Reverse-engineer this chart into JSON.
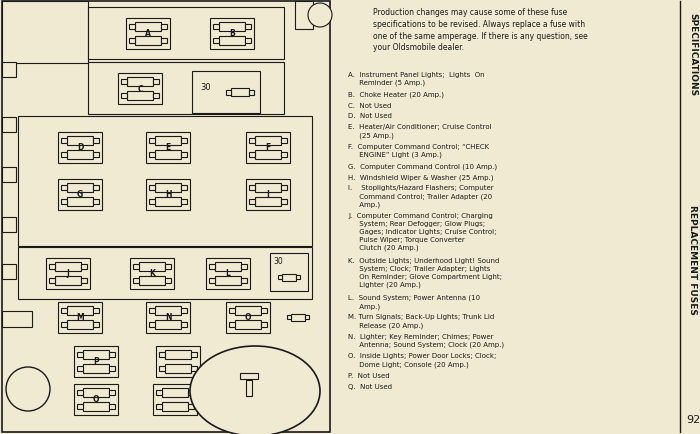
{
  "bg_color": "#f0ead2",
  "line_color": "#1a1a1a",
  "title_right_top": "SPECIFICATIONS",
  "title_right_mid": "REPLACEMENT FUSES",
  "page_num": "92",
  "intro_text": "Production changes may cause some of these fuse\nspecifications to be revised. Always replace a fuse with\none of the same amperage. If there is any question, see\nyour Oldsmobile dealer.",
  "descriptions": [
    "A.  Instrument Panel Lights;  Lights  On\n     Reminder (5 Amp.)",
    "B.  Choke Heater (20 Amp.)",
    "C.  Not Used",
    "D.  Not Used",
    "E.  Heater/Air Conditioner; Cruise Control\n     (25 Amp.)",
    "F.  Computer Command Control; “CHECK\n     ENGINE” Light (3 Amp.)",
    "G.  Computer Command Control (10 Amp.)",
    "H.  Windshield Wiper & Washer (25 Amp.)",
    "I.    Stoplights/Hazard Flashers; Computer\n     Command Control; Trailer Adapter (20\n     Amp.)",
    "J.  Computer Command Control; Charging\n     System; Rear Defogger; Glow Plugs;\n     Gages; Indicator Lights; Cruise Control;\n     Pulse Wiper; Torque Converter\n     Clutch (20 Amp.)",
    "K.  Outside Lights; Underhood Light! Sound\n     System; Clock; Trailer Adapter; Lights\n     On Reminder; Glove Compartment Light;\n     Lighter (20 Amp.)",
    "L.  Sound System; Power Antenna (10\n     Amp.)",
    "M. Turn Signals; Back-Up Lights; Trunk Lid\n     Release (20 Amp.)",
    "N.  Lighter; Key Reminder; Chimes; Power\n     Antenna; Sound System; Clock (20 Amp.)",
    "O.  Inside Lights; Power Door Locks; Clock;\n     Dome Light; Console (20 Amp.)",
    "P.  Not Used",
    "Q.  Not Used"
  ]
}
